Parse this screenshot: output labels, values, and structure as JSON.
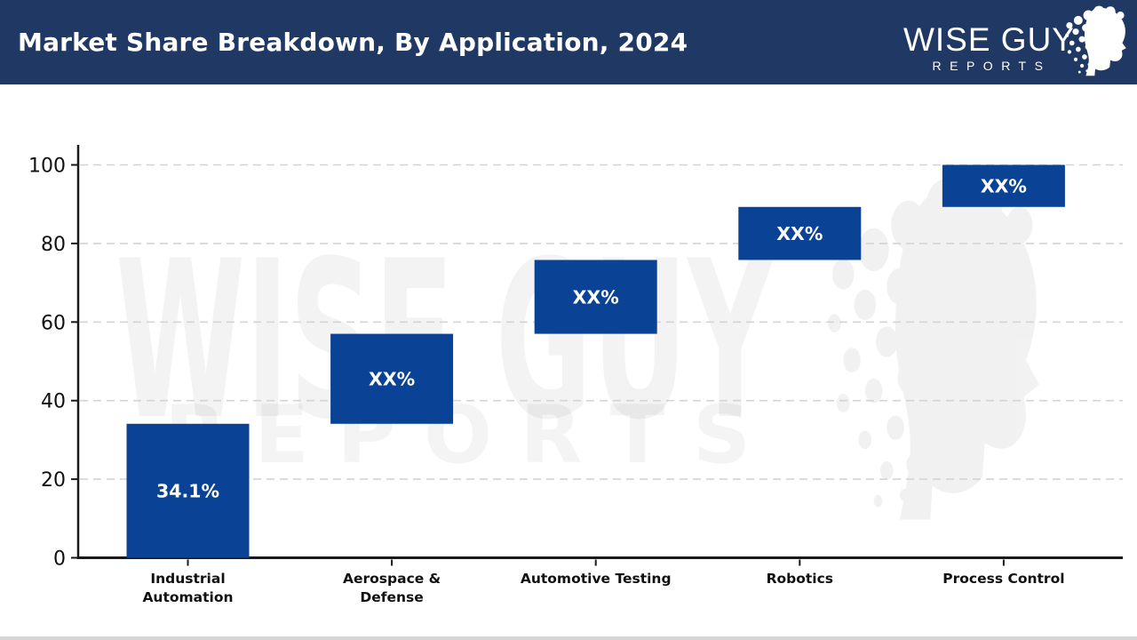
{
  "header": {
    "title": "Market Share Breakdown, By Application, 2024",
    "bg_color": "#1f3864",
    "logo": {
      "wordmark": "WISE GUY",
      "subtext": "REPORTS"
    }
  },
  "watermark": {
    "line1": "WISE GUY",
    "line2": "R E P O R T S"
  },
  "chart_data": {
    "type": "bar",
    "variant": "waterfall",
    "title": "Market Share Breakdown, By Application, 2024",
    "categories": [
      "Industrial Automation",
      "Aerospace & Defense",
      "Automotive Testing",
      "Robotics",
      "Process Control"
    ],
    "category_lines": [
      [
        "Industrial",
        "Automation"
      ],
      [
        "Aerospace &",
        "Defense"
      ],
      [
        "Automotive Testing"
      ],
      [
        "Robotics"
      ],
      [
        "Process Control"
      ]
    ],
    "segments": [
      {
        "category": "Industrial Automation",
        "start": 0,
        "end": 34.1,
        "label": "34.1%"
      },
      {
        "category": "Aerospace & Defense",
        "start": 34.1,
        "end": 57.0,
        "label": "XX%"
      },
      {
        "category": "Automotive Testing",
        "start": 57.0,
        "end": 75.8,
        "label": "XX%"
      },
      {
        "category": "Robotics",
        "start": 75.8,
        "end": 89.3,
        "label": "XX%"
      },
      {
        "category": "Process Control",
        "start": 89.3,
        "end": 100.0,
        "label": "XX%"
      }
    ],
    "bar_color": "#0a4296",
    "bar_label_color": "#ffffff",
    "yticks": [
      0,
      20,
      40,
      60,
      80,
      100
    ],
    "ylim": [
      0,
      105
    ],
    "xlabel": "",
    "ylabel": "",
    "grid": {
      "axis": "y",
      "style": "dashed",
      "color": "#d4d4d4"
    },
    "legend": null
  }
}
